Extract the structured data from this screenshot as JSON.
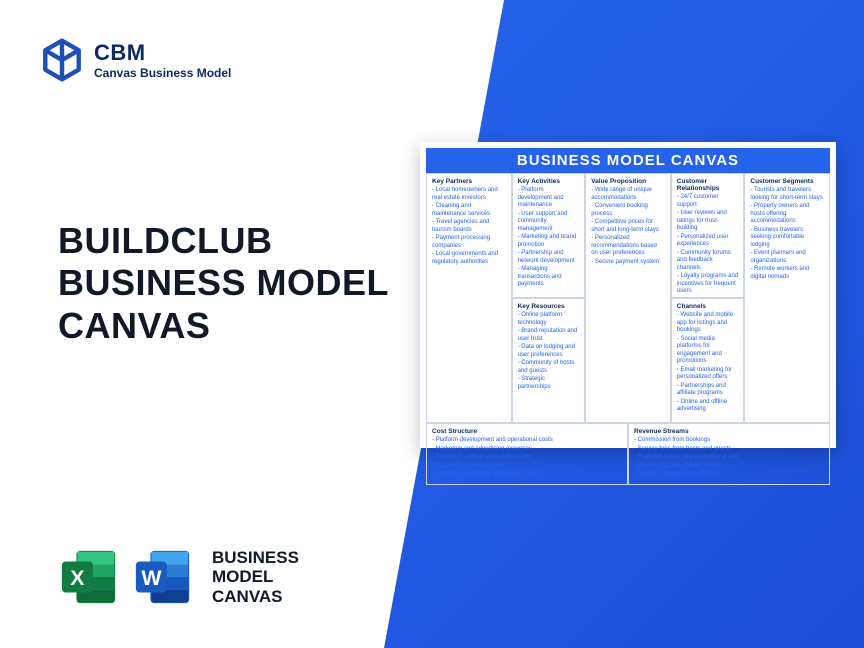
{
  "colors": {
    "blue_gradient_start": "#2563eb",
    "blue_gradient_end": "#1d4ed8",
    "dark_navy": "#0b2a5e",
    "text_dark": "#111827",
    "cell_border": "#cbd5e1",
    "excel_green_dark": "#107c41",
    "excel_green_light": "#21a366",
    "word_blue_dark": "#185abd",
    "word_blue_light": "#2b7cd3"
  },
  "header": {
    "logo_title": "CBM",
    "logo_subtitle": "Canvas Business Model"
  },
  "main_title_l1": "BUILDCLUB",
  "main_title_l2": "BUSINESS MODEL",
  "main_title_l3": "CANVAS",
  "footer": {
    "line1": "BUSINESS",
    "line2": "MODEL",
    "line3": "CANVAS",
    "excel_letter": "X",
    "word_letter": "W"
  },
  "canvas": {
    "title": "BUSINESS MODEL CANVAS",
    "key_partners": {
      "label": "Key Partners",
      "items": [
        "Local homeowners and real estate investors",
        "Cleaning and maintenance services",
        "Travel agencies and tourism boards",
        "Payment processing companies",
        "Local governments and regulatory authorities"
      ]
    },
    "key_activities": {
      "label": "Key Activities",
      "items": [
        "Platform development and maintenance",
        "User support and community management",
        "Marketing and brand promotion",
        "Partnership and network development",
        "Managing transactions and payments"
      ]
    },
    "key_resources": {
      "label": "Key Resources",
      "items": [
        "Online platform technology",
        "Brand reputation and user trust",
        "Data on lodging and user preferences",
        "Community of hosts and guests",
        "Strategic partnerships"
      ]
    },
    "value_proposition": {
      "label": "Value Proposition",
      "items": [
        "Wide range of unique accommodations",
        "Convenient booking process",
        "Competitive prices for short and long-term stays",
        "Personalized recommendations based on user preferences",
        "Secure payment system"
      ]
    },
    "customer_relationships": {
      "label": "Customer Relationships",
      "items": [
        "24/7 customer support",
        "User reviews and ratings for trust-building",
        "Personalized user experiences",
        "Community forums and feedback channels",
        "Loyalty programs and incentives for frequent users"
      ]
    },
    "channels": {
      "label": "Channels",
      "items": [
        "Website and mobile app for listings and bookings",
        "Social media platforms for engagement and promotions",
        "Email marketing for personalized offers",
        "Partnerships and affiliate programs",
        "Online and offline advertising"
      ]
    },
    "customer_segments": {
      "label": "Customer Segments",
      "items": [
        "Tourists and travelers looking for short-term stays",
        "Property owners and hosts offering accommodations",
        "Business travelers seeking comfortable lodging",
        "Event planners and organizations",
        "Remote workers and digital nomads"
      ]
    },
    "cost_structure": {
      "label": "Cost Structure",
      "items": [
        "Platform development and operational costs",
        "Marketing and advertising expenses",
        "Customer support and service costs",
        "Payment processing fees",
        "Legal and regulatory compliance costs"
      ]
    },
    "revenue_streams": {
      "label": "Revenue Streams",
      "items": [
        "Commission from bookings",
        "Service fees from hosts and guests",
        "Featured listings and promotional fees",
        "Partnership and affiliate income",
        "Ancillary services and products"
      ]
    }
  }
}
